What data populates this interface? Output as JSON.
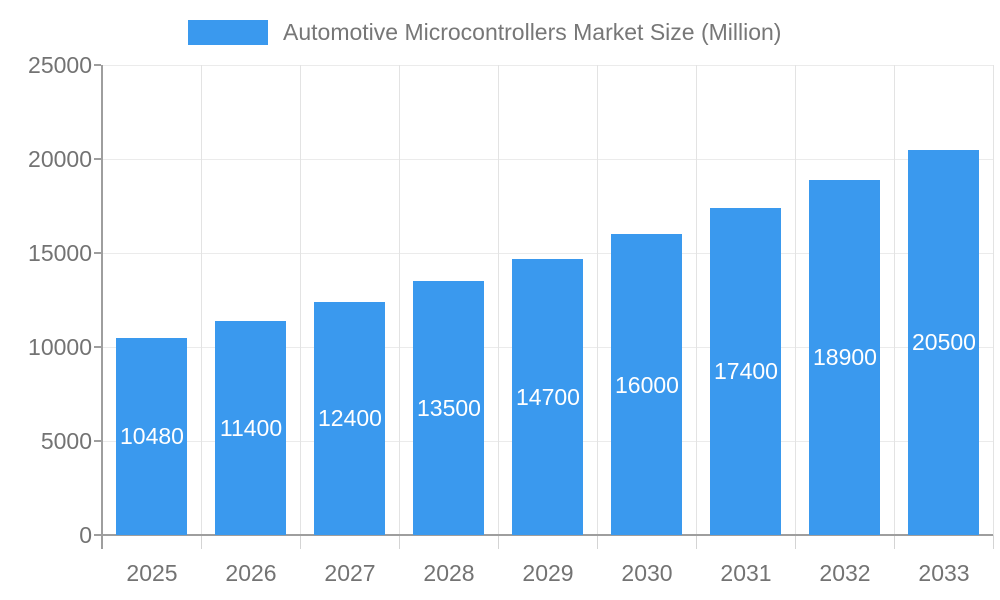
{
  "legend": {
    "label": "Automotive Microcontrollers Market Size (Million)",
    "swatch_color": "#3a99ee"
  },
  "chart_data": {
    "type": "bar",
    "title": "Automotive Microcontrollers Market Size (Million)",
    "series_name": "Automotive Microcontrollers Market Size (Million)",
    "categories": [
      "2025",
      "2026",
      "2027",
      "2028",
      "2029",
      "2030",
      "2031",
      "2032",
      "2033"
    ],
    "values": [
      10480,
      11400,
      12400,
      13500,
      14700,
      16000,
      17400,
      18900,
      20500
    ],
    "value_labels_shown": [
      10480,
      11400,
      12400,
      13500,
      14700,
      16000,
      17400,
      18900,
      20500
    ],
    "xlabel": "",
    "ylabel": "",
    "ylim": [
      0,
      25000
    ],
    "yticks": [
      0,
      5000,
      10000,
      15000,
      20000,
      25000
    ],
    "grid": true,
    "legend_position": "top",
    "bar_color": "#3a99ee",
    "value_label_style": "inside-center-white"
  },
  "colors": {
    "bar": "#3a99ee",
    "axis_line": "#9e9e9e",
    "grid_horizontal": "#ebebeb",
    "grid_vertical": "#e3e3e3",
    "tick_mark_x": "#d4d4d4",
    "tick_label": "#737373",
    "legend_text": "#777777",
    "value_label": "#ffffff",
    "background": "#ffffff"
  }
}
